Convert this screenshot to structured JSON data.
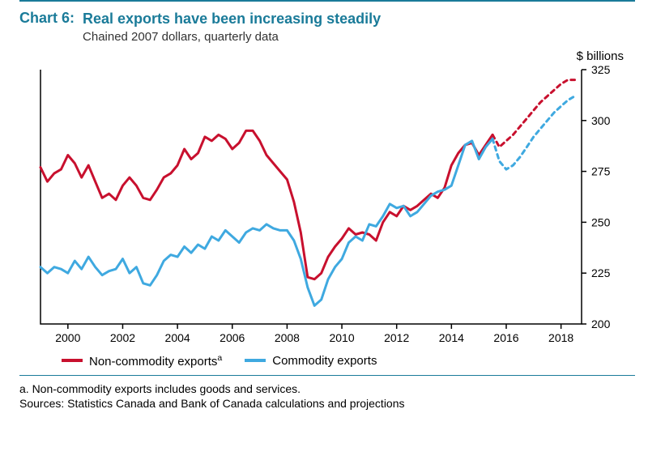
{
  "colors": {
    "rule": "#1a7b99",
    "title": "#1a7b99",
    "series1": "#c8102e",
    "series2": "#3fa9e0",
    "axis": "#000000",
    "tick": "#000000"
  },
  "header": {
    "chart_no": "Chart 6:",
    "title": "Real exports have been increasing steadily",
    "subtitle": "Chained 2007 dollars, quarterly data"
  },
  "chart": {
    "type": "line",
    "x_axis": {
      "min": 1999.0,
      "max": 2018.75,
      "ticks": [
        2000,
        2002,
        2004,
        2006,
        2008,
        2010,
        2012,
        2014,
        2016,
        2018
      ]
    },
    "y_axis": {
      "min": 200,
      "max": 325,
      "ticks": [
        200,
        225,
        250,
        275,
        300,
        325
      ],
      "unit_label": "$ billions"
    },
    "series": [
      {
        "id": "non_commodity",
        "label": "Non-commodity exports",
        "label_sup": "a",
        "color": "#c8102e",
        "line_width": 3,
        "solid": [
          [
            1999.0,
            277
          ],
          [
            1999.25,
            270
          ],
          [
            1999.5,
            274
          ],
          [
            1999.75,
            276
          ],
          [
            2000.0,
            283
          ],
          [
            2000.25,
            279
          ],
          [
            2000.5,
            272
          ],
          [
            2000.75,
            278
          ],
          [
            2001.0,
            270
          ],
          [
            2001.25,
            262
          ],
          [
            2001.5,
            264
          ],
          [
            2001.75,
            261
          ],
          [
            2002.0,
            268
          ],
          [
            2002.25,
            272
          ],
          [
            2002.5,
            268
          ],
          [
            2002.75,
            262
          ],
          [
            2003.0,
            261
          ],
          [
            2003.25,
            266
          ],
          [
            2003.5,
            272
          ],
          [
            2003.75,
            274
          ],
          [
            2004.0,
            278
          ],
          [
            2004.25,
            286
          ],
          [
            2004.5,
            281
          ],
          [
            2004.75,
            284
          ],
          [
            2005.0,
            292
          ],
          [
            2005.25,
            290
          ],
          [
            2005.5,
            293
          ],
          [
            2005.75,
            291
          ],
          [
            2006.0,
            286
          ],
          [
            2006.25,
            289
          ],
          [
            2006.5,
            295
          ],
          [
            2006.75,
            295
          ],
          [
            2007.0,
            290
          ],
          [
            2007.25,
            283
          ],
          [
            2007.5,
            279
          ],
          [
            2007.75,
            275
          ],
          [
            2008.0,
            271
          ],
          [
            2008.25,
            260
          ],
          [
            2008.5,
            245
          ],
          [
            2008.75,
            223
          ],
          [
            2009.0,
            222
          ],
          [
            2009.25,
            225
          ],
          [
            2009.5,
            233
          ],
          [
            2009.75,
            238
          ],
          [
            2010.0,
            242
          ],
          [
            2010.25,
            247
          ],
          [
            2010.5,
            244
          ],
          [
            2010.75,
            245
          ],
          [
            2011.0,
            244
          ],
          [
            2011.25,
            241
          ],
          [
            2011.5,
            250
          ],
          [
            2011.75,
            255
          ],
          [
            2012.0,
            253
          ],
          [
            2012.25,
            258
          ],
          [
            2012.5,
            256
          ],
          [
            2012.75,
            258
          ],
          [
            2013.0,
            261
          ],
          [
            2013.25,
            264
          ],
          [
            2013.5,
            262
          ],
          [
            2013.75,
            267
          ],
          [
            2014.0,
            278
          ],
          [
            2014.25,
            284
          ],
          [
            2014.5,
            288
          ],
          [
            2014.75,
            289
          ],
          [
            2015.0,
            283
          ],
          [
            2015.25,
            288
          ],
          [
            2015.5,
            293
          ]
        ],
        "dashed": [
          [
            2015.5,
            293
          ],
          [
            2015.75,
            287
          ],
          [
            2016.0,
            290
          ],
          [
            2016.25,
            293
          ],
          [
            2016.5,
            297
          ],
          [
            2016.75,
            301
          ],
          [
            2017.0,
            305
          ],
          [
            2017.25,
            309
          ],
          [
            2017.5,
            312
          ],
          [
            2017.75,
            315
          ],
          [
            2018.0,
            318
          ],
          [
            2018.25,
            320
          ],
          [
            2018.5,
            320
          ]
        ]
      },
      {
        "id": "commodity",
        "label": "Commodity exports",
        "label_sup": "",
        "color": "#3fa9e0",
        "line_width": 3,
        "solid": [
          [
            1999.0,
            228
          ],
          [
            1999.25,
            225
          ],
          [
            1999.5,
            228
          ],
          [
            1999.75,
            227
          ],
          [
            2000.0,
            225
          ],
          [
            2000.25,
            231
          ],
          [
            2000.5,
            227
          ],
          [
            2000.75,
            233
          ],
          [
            2001.0,
            228
          ],
          [
            2001.25,
            224
          ],
          [
            2001.5,
            226
          ],
          [
            2001.75,
            227
          ],
          [
            2002.0,
            232
          ],
          [
            2002.25,
            225
          ],
          [
            2002.5,
            228
          ],
          [
            2002.75,
            220
          ],
          [
            2003.0,
            219
          ],
          [
            2003.25,
            224
          ],
          [
            2003.5,
            231
          ],
          [
            2003.75,
            234
          ],
          [
            2004.0,
            233
          ],
          [
            2004.25,
            238
          ],
          [
            2004.5,
            235
          ],
          [
            2004.75,
            239
          ],
          [
            2005.0,
            237
          ],
          [
            2005.25,
            243
          ],
          [
            2005.5,
            241
          ],
          [
            2005.75,
            246
          ],
          [
            2006.0,
            243
          ],
          [
            2006.25,
            240
          ],
          [
            2006.5,
            245
          ],
          [
            2006.75,
            247
          ],
          [
            2007.0,
            246
          ],
          [
            2007.25,
            249
          ],
          [
            2007.5,
            247
          ],
          [
            2007.75,
            246
          ],
          [
            2008.0,
            246
          ],
          [
            2008.25,
            241
          ],
          [
            2008.5,
            232
          ],
          [
            2008.75,
            218
          ],
          [
            2009.0,
            209
          ],
          [
            2009.25,
            212
          ],
          [
            2009.5,
            222
          ],
          [
            2009.75,
            228
          ],
          [
            2010.0,
            232
          ],
          [
            2010.25,
            240
          ],
          [
            2010.5,
            243
          ],
          [
            2010.75,
            241
          ],
          [
            2011.0,
            249
          ],
          [
            2011.25,
            248
          ],
          [
            2011.5,
            253
          ],
          [
            2011.75,
            259
          ],
          [
            2012.0,
            257
          ],
          [
            2012.25,
            258
          ],
          [
            2012.5,
            253
          ],
          [
            2012.75,
            255
          ],
          [
            2013.0,
            259
          ],
          [
            2013.25,
            263
          ],
          [
            2013.5,
            265
          ],
          [
            2013.75,
            266
          ],
          [
            2014.0,
            268
          ],
          [
            2014.25,
            278
          ],
          [
            2014.5,
            288
          ],
          [
            2014.75,
            290
          ],
          [
            2015.0,
            281
          ],
          [
            2015.25,
            287
          ],
          [
            2015.5,
            291
          ]
        ],
        "dashed": [
          [
            2015.5,
            291
          ],
          [
            2015.75,
            280
          ],
          [
            2016.0,
            276
          ],
          [
            2016.25,
            278
          ],
          [
            2016.5,
            282
          ],
          [
            2016.75,
            287
          ],
          [
            2017.0,
            292
          ],
          [
            2017.25,
            296
          ],
          [
            2017.5,
            300
          ],
          [
            2017.75,
            304
          ],
          [
            2018.0,
            307
          ],
          [
            2018.25,
            310
          ],
          [
            2018.5,
            312
          ]
        ]
      }
    ]
  },
  "footnotes": {
    "note_a": "a. Non-commodity exports includes goods and services.",
    "sources": "Sources: Statistics Canada and Bank of Canada calculations and projections"
  }
}
